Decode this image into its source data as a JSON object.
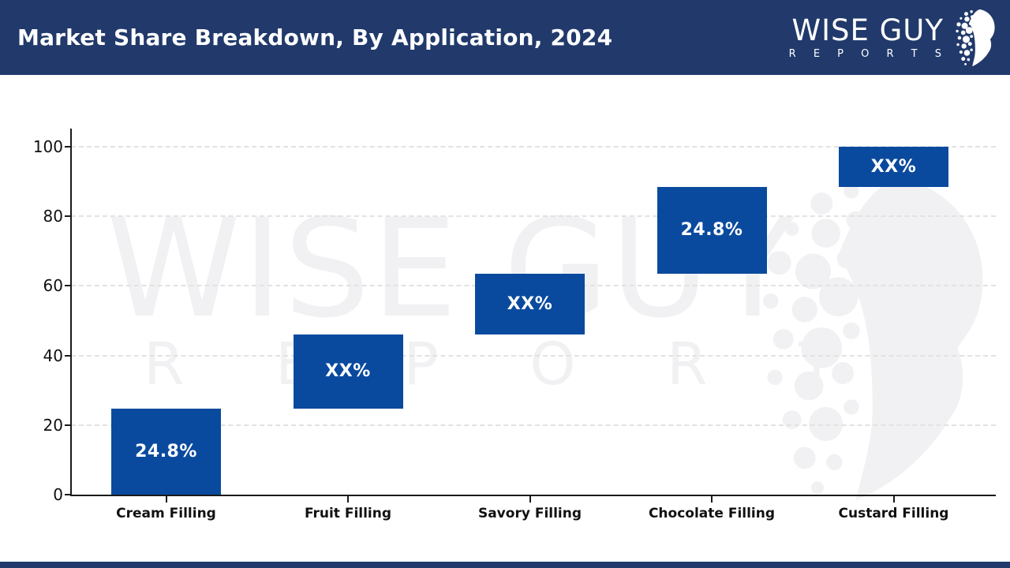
{
  "header": {
    "title": "Market Share Breakdown, By Application, 2024",
    "logo": {
      "line1": "WISE GUY",
      "line2": "R E P O R T S"
    }
  },
  "watermark": {
    "line1": "WISE GUY",
    "line2": "R E P O R T S"
  },
  "footer": {},
  "colors": {
    "header_bg": "#21396b",
    "footer_bg": "#21396b",
    "bar": "#0a4a9e",
    "bar_label": "#ffffff",
    "watermark": "#f1f1f3",
    "grid": "#e2e2e2",
    "axis": "#1a1a1a"
  },
  "chart_data": {
    "type": "bar",
    "subtype": "waterfall",
    "title": "Market Share Breakdown, By Application, 2024",
    "xlabel": "",
    "ylabel": "",
    "ylim": [
      0,
      110
    ],
    "yticks": [
      0,
      20,
      40,
      60,
      80,
      100
    ],
    "grid": true,
    "legend": false,
    "categories": [
      "Cream Filling",
      "Fruit Filling",
      "Savory Filling",
      "Chocolate Filling",
      "Custard Filling"
    ],
    "bars": [
      {
        "category": "Cream Filling",
        "start": 0,
        "end": 24.8,
        "value": 24.8,
        "label": "24.8%"
      },
      {
        "category": "Fruit Filling",
        "start": 24.8,
        "end": 46.0,
        "value": 21.2,
        "label": "XX%"
      },
      {
        "category": "Savory Filling",
        "start": 46.0,
        "end": 63.6,
        "value": 17.6,
        "label": "XX%"
      },
      {
        "category": "Chocolate Filling",
        "start": 63.6,
        "end": 88.4,
        "value": 24.8,
        "label": "24.8%"
      },
      {
        "category": "Custard Filling",
        "start": 88.4,
        "end": 100,
        "value": 11.6,
        "label": "XX%"
      }
    ]
  }
}
